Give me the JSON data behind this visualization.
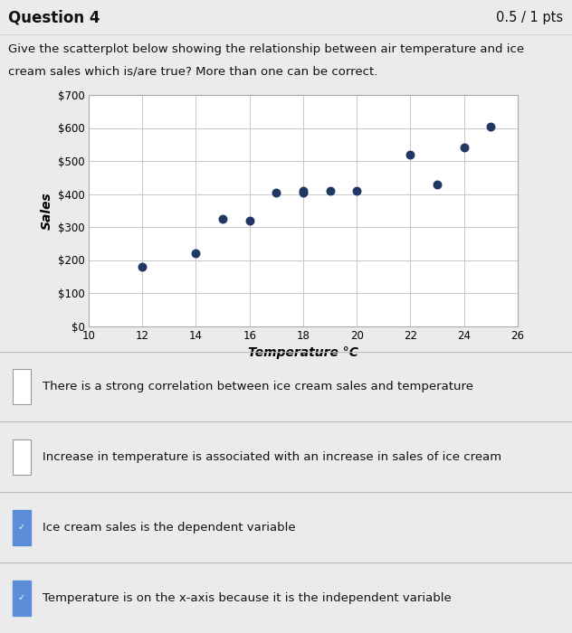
{
  "title": "Question 4",
  "score": "0.5 / 1 pts",
  "description_line1": "Give the scatterplot below showing the relationship between air temperature and ice",
  "description_line2": "cream sales which is/are true? More than one can be correct.",
  "scatter_x": [
    12,
    14,
    15,
    16,
    17,
    18,
    18,
    19,
    20,
    22,
    23,
    24,
    25
  ],
  "scatter_y": [
    180,
    220,
    325,
    320,
    405,
    410,
    405,
    410,
    410,
    520,
    430,
    540,
    605
  ],
  "dot_color": "#1f3864",
  "xlabel": "Temperature °C",
  "ylabel": "Sales",
  "xlim": [
    10,
    26
  ],
  "ylim": [
    0,
    700
  ],
  "xticks": [
    10,
    12,
    14,
    16,
    18,
    20,
    22,
    24,
    26
  ],
  "yticks": [
    0,
    100,
    200,
    300,
    400,
    500,
    600,
    700
  ],
  "ytick_labels": [
    "$0",
    "$100",
    "$200",
    "$300",
    "$400",
    "$500",
    "$600",
    "$700"
  ],
  "options": [
    {
      "text": "There is a strong correlation between ice cream sales and temperature",
      "checked": false
    },
    {
      "text": "Increase in temperature is associated with an increase in sales of ice cream",
      "checked": false
    },
    {
      "text": "Ice cream sales is the dependent variable",
      "checked": true
    },
    {
      "text": "Temperature is on the x-axis because it is the independent variable",
      "checked": true
    }
  ],
  "bg_color": "#ebebeb",
  "plot_bg_color": "#ffffff",
  "option_bg_color": "#e0e0e0",
  "option_checked_bg": "#d8d8d8",
  "header_bg": "#e8e8e8",
  "divider_color": "#cccccc",
  "checkbox_checked_color": "#5b8dd9",
  "checkbox_unchecked_color": "#ffffff"
}
